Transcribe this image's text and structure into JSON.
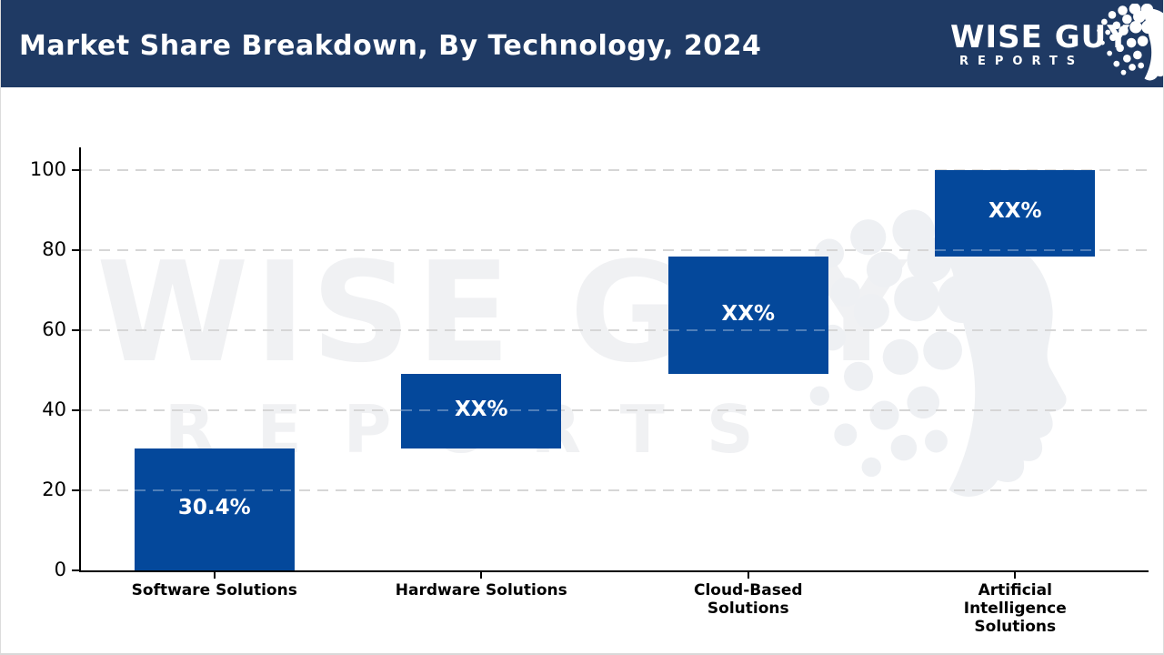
{
  "header": {
    "title": "Market Share Breakdown, By Technology, 2024",
    "bg_color": "#1f3a64",
    "logo_wordmark": "WISE GUY",
    "logo_reports": "REPORTS"
  },
  "watermark": {
    "big_text": "WISE GUY",
    "reports_text": "REPORTS",
    "color": "#f0f1f3"
  },
  "chart_data": {
    "type": "bar",
    "subtype": "waterfall",
    "title": "Market Share Breakdown, By Technology, 2024",
    "categories": [
      "Software Solutions",
      "Hardware Solutions",
      "Cloud-Based Solutions",
      "Artificial Intelligence Solutions"
    ],
    "categories_wrapped": [
      [
        "Software Solutions"
      ],
      [
        "Hardware Solutions"
      ],
      [
        "Cloud-Based",
        "Solutions"
      ],
      [
        "Artificial",
        "Intelligence",
        "Solutions"
      ]
    ],
    "series": [
      {
        "name": "Market Share (%)",
        "segments": [
          {
            "category": "Software Solutions",
            "base": 0,
            "top": 30.4,
            "label": "30.4%"
          },
          {
            "category": "Hardware Solutions",
            "base": 30.4,
            "top": 49,
            "label": "XX%"
          },
          {
            "category": "Cloud-Based Solutions",
            "base": 49,
            "top": 78.5,
            "label": "XX%"
          },
          {
            "category": "Artificial Intelligence Solutions",
            "base": 78.5,
            "top": 100,
            "label": "XX%"
          }
        ]
      }
    ],
    "xlabel": "",
    "ylabel": "",
    "ylim": [
      0,
      100
    ],
    "yticks": [
      0,
      20,
      40,
      60,
      80,
      100
    ],
    "grid": "horizontal-dashed",
    "legend": "none",
    "bar_color": "#04489b",
    "value_label_color": "#ffffff",
    "axis_color": "#000000",
    "gridline_color": "#d6d6d6"
  }
}
